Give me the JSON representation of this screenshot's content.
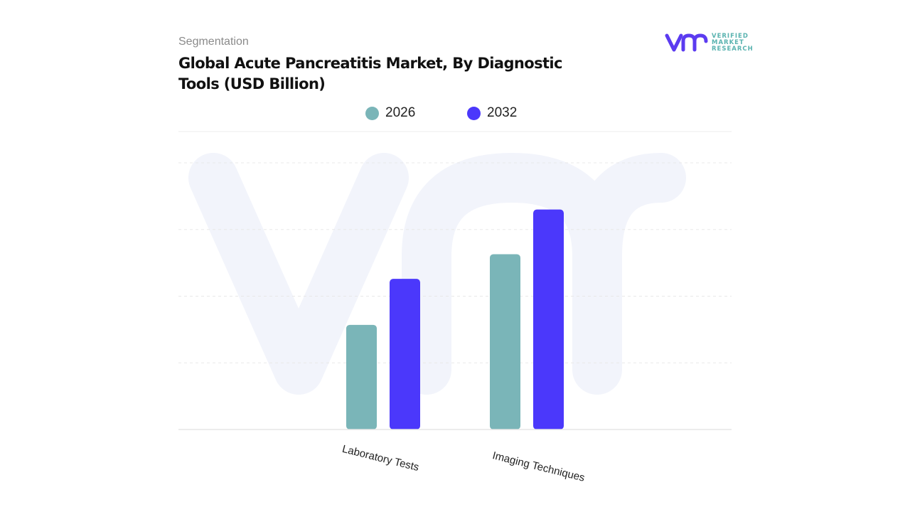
{
  "header": {
    "segment_label": "Segmentation",
    "title": "Global Acute Pancreatitis Market, By Diagnostic Tools (USD Billion)"
  },
  "logo": {
    "mark": "vmr",
    "text_lines": [
      "VERIFIED",
      "MARKET",
      "RESEARCH"
    ]
  },
  "colors": {
    "series_2026": "#7ab5b8",
    "series_2032": "#4b38fb",
    "logo_purple": "#5b3bf0",
    "logo_teal": "#5ab3b0"
  },
  "chart_data": {
    "type": "bar",
    "title": "Global Acute Pancreatitis Market, By Diagnostic Tools (USD Billion)",
    "categories": [
      "Laboratory Tests",
      "Imaging Techniques"
    ],
    "series": [
      {
        "name": "2026",
        "values": [
          1.57,
          2.63
        ]
      },
      {
        "name": "2032",
        "values": [
          2.26,
          3.3
        ]
      }
    ],
    "ylim": [
      0,
      4
    ],
    "y_axis_labels_shown": false,
    "grid": true,
    "legend_placement": "top-center"
  }
}
